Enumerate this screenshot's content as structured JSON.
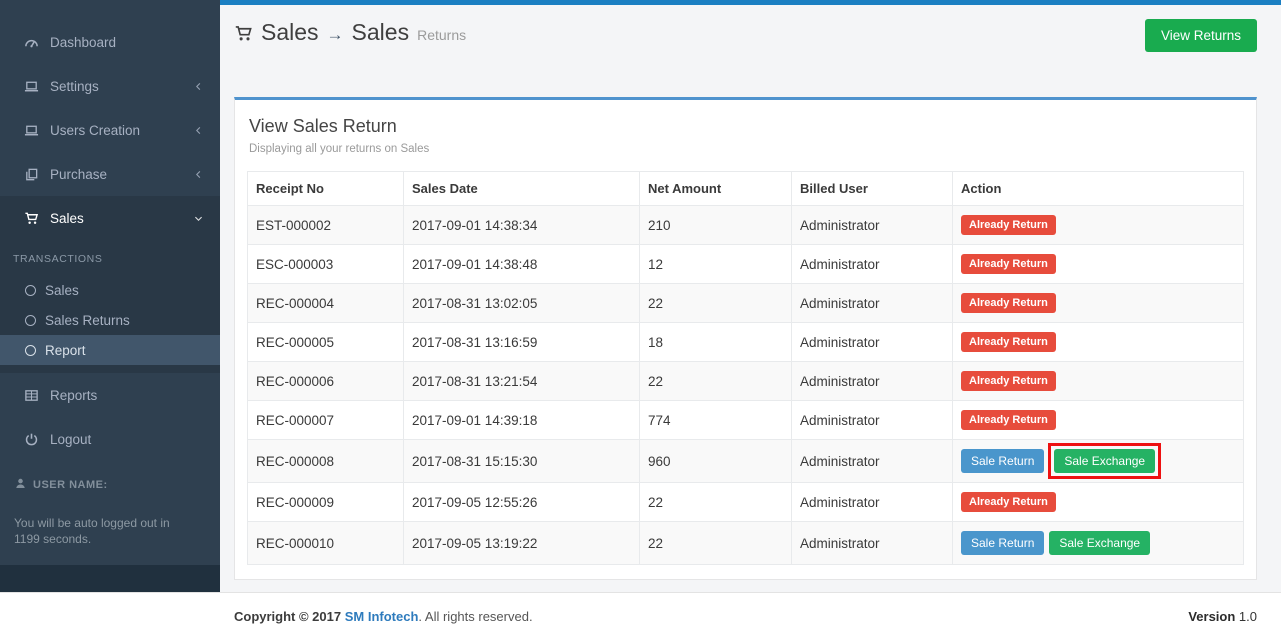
{
  "colors": {
    "top_bar_blue": "#1b7fc2",
    "panel_accent_blue": "#4f93ce",
    "sidebar_bg": "#2f4050",
    "sidebar_active_bg": "#293846",
    "sidebar_text": "#a7b1c2",
    "sidebar_highlight_bg": "#41566b",
    "danger_red": "#e74c3c",
    "info_blue": "#4a96cc",
    "success_green": "#25b264",
    "primary_button_green": "#19ab4f",
    "annotation_red": "#ee1111",
    "link_blue": "#2e7bbd"
  },
  "sidebar": {
    "items": [
      {
        "label": "Dashboard",
        "icon": "gauge-icon"
      },
      {
        "label": "Settings",
        "icon": "laptop-icon",
        "chevron": "left"
      },
      {
        "label": "Users Creation",
        "icon": "laptop-icon",
        "chevron": "left"
      },
      {
        "label": "Purchase",
        "icon": "copy-icon",
        "chevron": "left"
      },
      {
        "label": "Sales",
        "icon": "cart-icon",
        "chevron": "down",
        "active": true
      }
    ],
    "section_label": "TRANSACTIONS",
    "sub_items": [
      {
        "label": "Sales"
      },
      {
        "label": "Sales Returns"
      },
      {
        "label": "Report",
        "highlighted": true
      }
    ],
    "bottom_items": [
      {
        "label": "Reports",
        "icon": "table-icon"
      },
      {
        "label": "Logout",
        "icon": "power-icon"
      }
    ],
    "user_label": "USER NAME:",
    "auto_logout_text": "You will be auto logged out in 1199 seconds."
  },
  "header": {
    "title_primary": "Sales",
    "title_secondary": "Sales",
    "title_suffix": "Returns",
    "action_button": "View Returns"
  },
  "panel": {
    "title": "View Sales Return",
    "subtitle": "Displaying all your returns on Sales"
  },
  "table": {
    "columns": [
      "Receipt No",
      "Sales Date",
      "Net Amount",
      "Billed User",
      "Action"
    ],
    "rows": [
      {
        "receipt_no": "EST-000002",
        "sales_date": "2017-09-01 14:38:34",
        "net_amount": "210",
        "billed_user": "Administrator",
        "actions": [
          {
            "label": "Already Return",
            "type": "badge-danger"
          }
        ]
      },
      {
        "receipt_no": "ESC-000003",
        "sales_date": "2017-09-01 14:38:48",
        "net_amount": "12",
        "billed_user": "Administrator",
        "actions": [
          {
            "label": "Already Return",
            "type": "badge-danger"
          }
        ]
      },
      {
        "receipt_no": "REC-000004",
        "sales_date": "2017-08-31 13:02:05",
        "net_amount": "22",
        "billed_user": "Administrator",
        "actions": [
          {
            "label": "Already Return",
            "type": "badge-danger"
          }
        ]
      },
      {
        "receipt_no": "REC-000005",
        "sales_date": "2017-08-31 13:16:59",
        "net_amount": "18",
        "billed_user": "Administrator",
        "actions": [
          {
            "label": "Already Return",
            "type": "badge-danger"
          }
        ]
      },
      {
        "receipt_no": "REC-000006",
        "sales_date": "2017-08-31 13:21:54",
        "net_amount": "22",
        "billed_user": "Administrator",
        "actions": [
          {
            "label": "Already Return",
            "type": "badge-danger"
          }
        ]
      },
      {
        "receipt_no": "REC-000007",
        "sales_date": "2017-09-01 14:39:18",
        "net_amount": "774",
        "billed_user": "Administrator",
        "actions": [
          {
            "label": "Already Return",
            "type": "badge-danger"
          }
        ]
      },
      {
        "receipt_no": "REC-000008",
        "sales_date": "2017-08-31 15:15:30",
        "net_amount": "960",
        "billed_user": "Administrator",
        "actions": [
          {
            "label": "Sale Return",
            "type": "btn-info"
          },
          {
            "label": "Sale Exchange",
            "type": "btn-success",
            "highlighted": true
          }
        ]
      },
      {
        "receipt_no": "REC-000009",
        "sales_date": "2017-09-05 12:55:26",
        "net_amount": "22",
        "billed_user": "Administrator",
        "actions": [
          {
            "label": "Already Return",
            "type": "badge-danger"
          }
        ]
      },
      {
        "receipt_no": "REC-000010",
        "sales_date": "2017-09-05 13:19:22",
        "net_amount": "22",
        "billed_user": "Administrator",
        "actions": [
          {
            "label": "Sale Return",
            "type": "btn-info"
          },
          {
            "label": "Sale Exchange",
            "type": "btn-success"
          }
        ]
      }
    ]
  },
  "footer": {
    "copyright_prefix": "Copyright © 2017",
    "company": "SM Infotech",
    "copyright_suffix": ". All rights reserved.",
    "version_label": "Version",
    "version_value": "1.0"
  }
}
